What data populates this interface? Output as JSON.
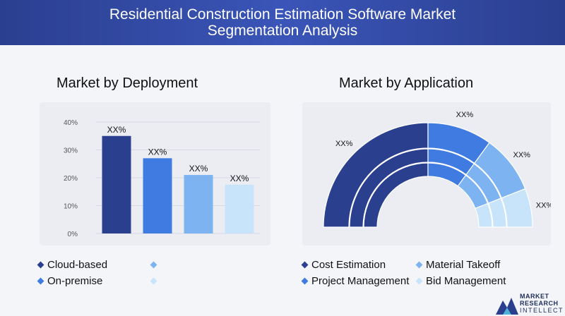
{
  "header": {
    "title_line1": "Residential Construction Estimation Software Market",
    "title_line2": "Segmentation Analysis"
  },
  "left": {
    "title": "Market by Deployment",
    "legend": [
      {
        "label": "Cloud-based",
        "color": "#2b3f8f"
      },
      {
        "label": "",
        "color": "#7cb3f0"
      },
      {
        "label": "On-premise",
        "color": "#3f7be0"
      },
      {
        "label": "",
        "color": "#c8e4fb"
      }
    ]
  },
  "right": {
    "title": "Market by Application",
    "legend": [
      {
        "label": "Cost Estimation",
        "color": "#2b3f8f"
      },
      {
        "label": "Material Takeoff",
        "color": "#7cb3f0"
      },
      {
        "label": "Project Management",
        "color": "#3f7be0"
      },
      {
        "label": "Bid Management",
        "color": "#c8e4fb"
      }
    ]
  },
  "logo": {
    "line1": "MARKET",
    "line2": "RESEARCH",
    "line3": "INTELLECT"
  },
  "chart_data": [
    {
      "type": "bar",
      "title": "Market by Deployment",
      "categories": [
        "",
        "",
        "",
        ""
      ],
      "values": [
        35,
        27,
        21,
        17.5
      ],
      "labels": [
        "XX%",
        "XX%",
        "XX%",
        "XX%"
      ],
      "colors": [
        "#2b3f8f",
        "#3f7be0",
        "#7cb3f0",
        "#c8e4fb"
      ],
      "yticks": [
        "0%",
        "10%",
        "20%",
        "30%",
        "40%"
      ],
      "ylim": [
        0,
        40
      ],
      "grid": true
    },
    {
      "type": "pie",
      "title": "Market by Application",
      "style": "half-donut",
      "categories": [
        "Cost Estimation",
        "Project Management",
        "Material Takeoff",
        "Bid Management"
      ],
      "values": [
        50,
        20,
        18,
        12
      ],
      "labels": [
        "XX%",
        "XX%",
        "XX%",
        "XX%"
      ],
      "colors": [
        "#2b3f8f",
        "#3f7be0",
        "#7cb3f0",
        "#c8e4fb"
      ]
    }
  ]
}
